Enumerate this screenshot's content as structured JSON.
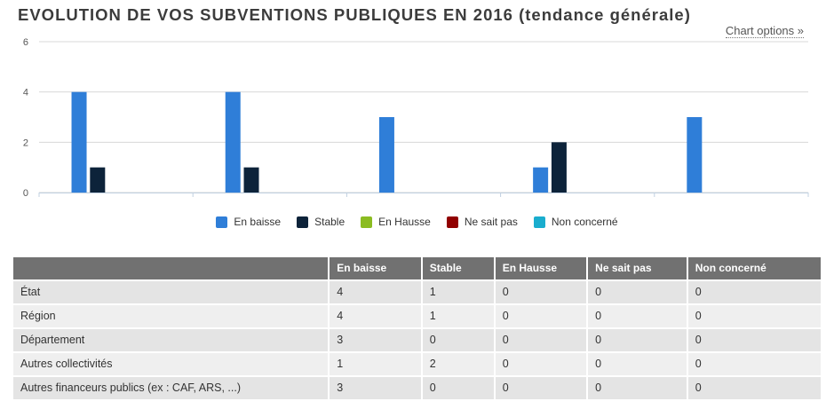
{
  "page": {
    "title": "EVOLUTION DE VOS SUBVENTIONS PUBLIQUES EN 2016 (tendance générale)",
    "chart_options_label": "Chart options »"
  },
  "chart_data": {
    "type": "bar",
    "categories": [
      "État",
      "Région",
      "Département",
      "Autres collectivités",
      "Autres financeurs publics (ex : CAF, ARS, ...)"
    ],
    "series": [
      {
        "name": "En baisse",
        "color": "#2f7ed8",
        "values": [
          4,
          4,
          3,
          1,
          3
        ]
      },
      {
        "name": "Stable",
        "color": "#0d233a",
        "values": [
          1,
          1,
          0,
          2,
          0
        ]
      },
      {
        "name": "En Hausse",
        "color": "#8bbc21",
        "values": [
          0,
          0,
          0,
          0,
          0
        ]
      },
      {
        "name": "Ne sait pas",
        "color": "#910000",
        "values": [
          0,
          0,
          0,
          0,
          0
        ]
      },
      {
        "name": "Non concerné",
        "color": "#1aadce",
        "values": [
          0,
          0,
          0,
          0,
          0
        ]
      }
    ],
    "title": "",
    "xlabel": "",
    "ylabel": "",
    "ylim": [
      0,
      6
    ],
    "yticks": [
      0,
      2,
      4,
      6
    ],
    "grid": true,
    "legend_position": "bottom",
    "x_axis_labels_visible": false
  },
  "table": {
    "columns": [
      "",
      "En baisse",
      "Stable",
      "En Hausse",
      "Ne sait pas",
      "Non concerné"
    ],
    "rows": [
      {
        "label": "État",
        "values": [
          4,
          1,
          0,
          0,
          0
        ]
      },
      {
        "label": "Région",
        "values": [
          4,
          1,
          0,
          0,
          0
        ]
      },
      {
        "label": "Département",
        "values": [
          3,
          0,
          0,
          0,
          0
        ]
      },
      {
        "label": "Autres collectivités",
        "values": [
          1,
          2,
          0,
          0,
          0
        ]
      },
      {
        "label": "Autres financeurs publics (ex : CAF, ARS, ...)",
        "values": [
          3,
          0,
          0,
          0,
          0
        ]
      }
    ]
  },
  "colors": {
    "grid_line": "#d8d8d8",
    "axis_line": "#c0d0e0",
    "table_header_bg": "#717171"
  }
}
